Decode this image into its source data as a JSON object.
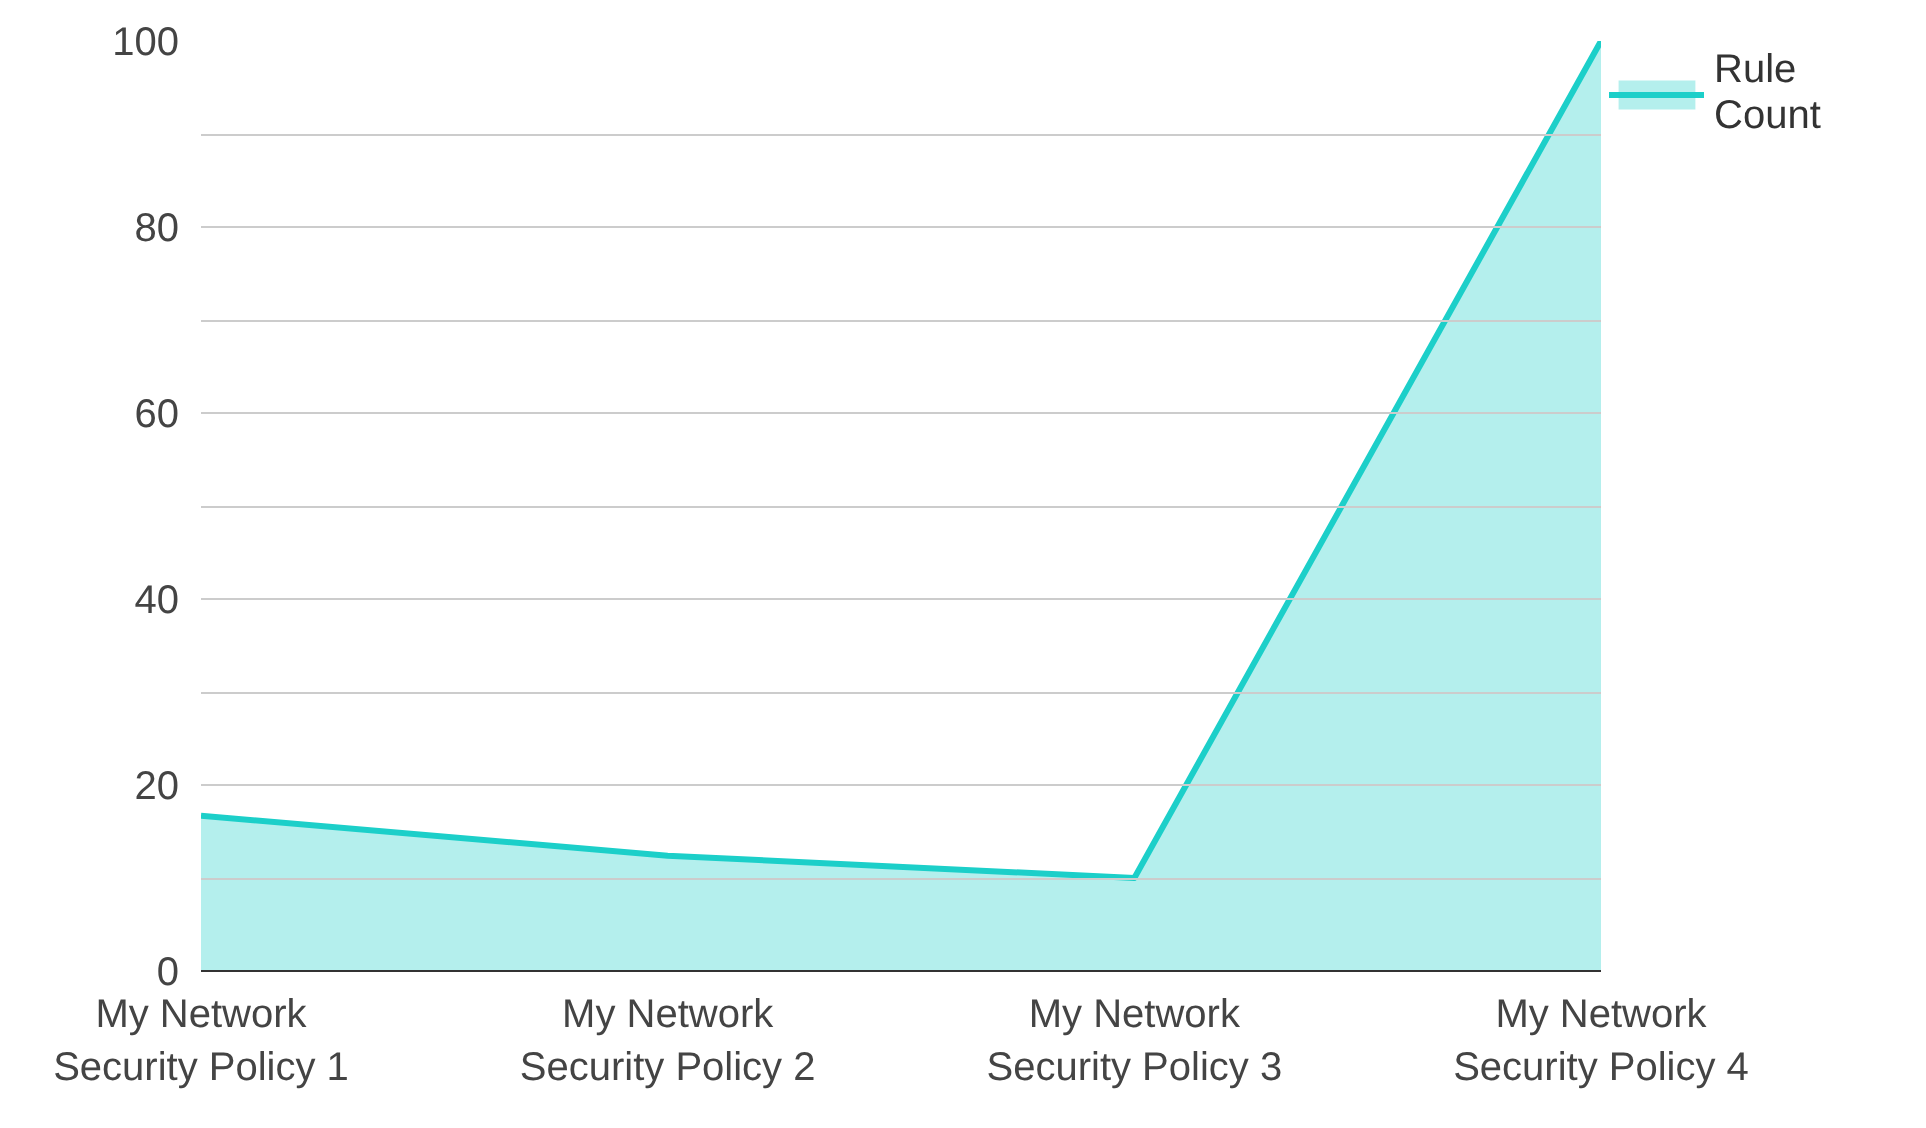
{
  "chart_data": {
    "type": "area",
    "categories": [
      "My Network Security Policy 1",
      "My Network Security Policy 2",
      "My Network Security Policy 3",
      "My Network Security Policy 4"
    ],
    "series": [
      {
        "name": "Rule Count",
        "color": "#1ccfc9",
        "values": [
          16.7,
          12.4,
          10,
          100
        ]
      }
    ],
    "ylim": [
      0,
      100
    ],
    "yticks": [
      0,
      {
        "value": 10,
        "label": null
      },
      20,
      {
        "value": 30,
        "label": null
      },
      40,
      {
        "value": 50,
        "label": null
      },
      60,
      {
        "value": 70,
        "label": null
      },
      80,
      {
        "value": 90,
        "label": null
      },
      100
    ],
    "grid": "y",
    "legend": "top right"
  }
}
